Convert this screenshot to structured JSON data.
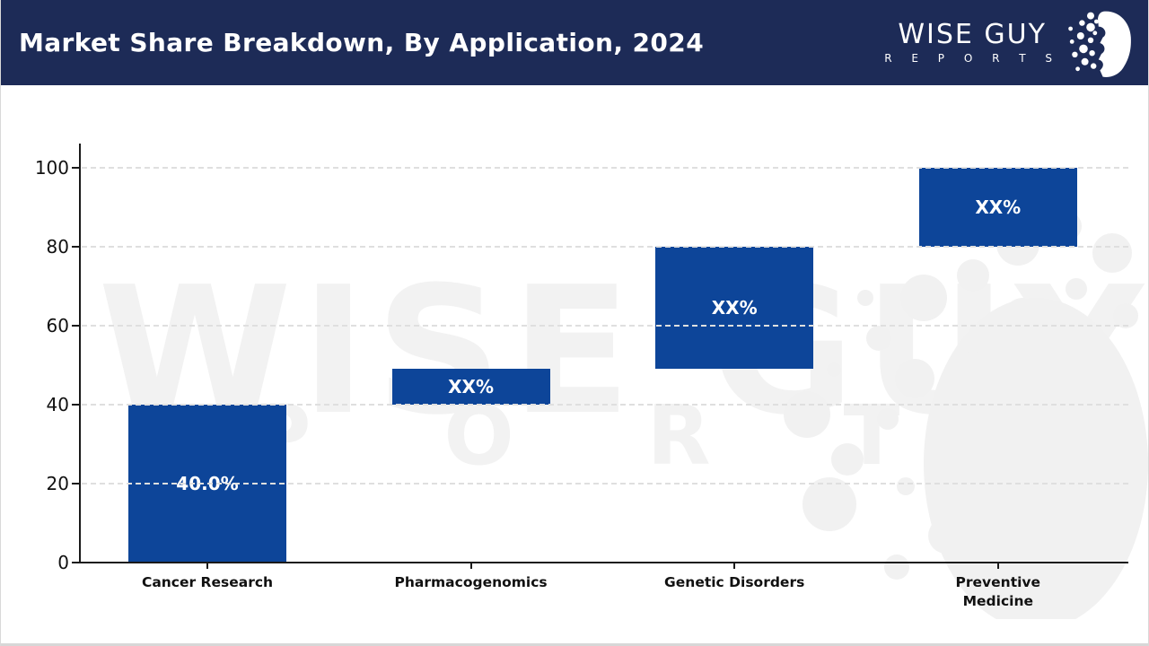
{
  "header": {
    "title": "Market Share Breakdown, By Application, 2024",
    "background_color": "#1d2b57",
    "logo": {
      "line1": "WISE GUY",
      "line2": "R E P O R T S"
    }
  },
  "watermark": {
    "line1": "WISE GUY",
    "line2": "P O R T S"
  },
  "chart_data": {
    "type": "bar",
    "subtype": "floating-waterfall",
    "title": "Market Share Breakdown, By Application, 2024",
    "categories": [
      "Cancer Research",
      "Pharmacogenomics",
      "Genetic Disorders",
      "Preventive Medicine"
    ],
    "tick_labels": [
      "Cancer Research",
      "Pharmacogenomics",
      "Genetic Disorders",
      "Preventive\nMedicine"
    ],
    "segments": [
      {
        "category": "Cancer Research",
        "start": 0,
        "end": 40,
        "label": "40.0%"
      },
      {
        "category": "Pharmacogenomics",
        "start": 40,
        "end": 49,
        "label": "XX%"
      },
      {
        "category": "Genetic Disorders",
        "start": 49,
        "end": 80,
        "label": "XX%"
      },
      {
        "category": "Preventive Medicine",
        "start": 80,
        "end": 100,
        "label": "XX%"
      }
    ],
    "ylim": [
      0,
      100
    ],
    "yticks": [
      0,
      20,
      40,
      60,
      80,
      100
    ],
    "xlabel": "",
    "ylabel": "",
    "legend": "none",
    "grid": "horizontal-dashed",
    "gridline_color": "#dfdfdf",
    "bar_color": "#0d4599",
    "bar_label_color": "#ffffff",
    "axis_color": "#1a1a1a"
  }
}
